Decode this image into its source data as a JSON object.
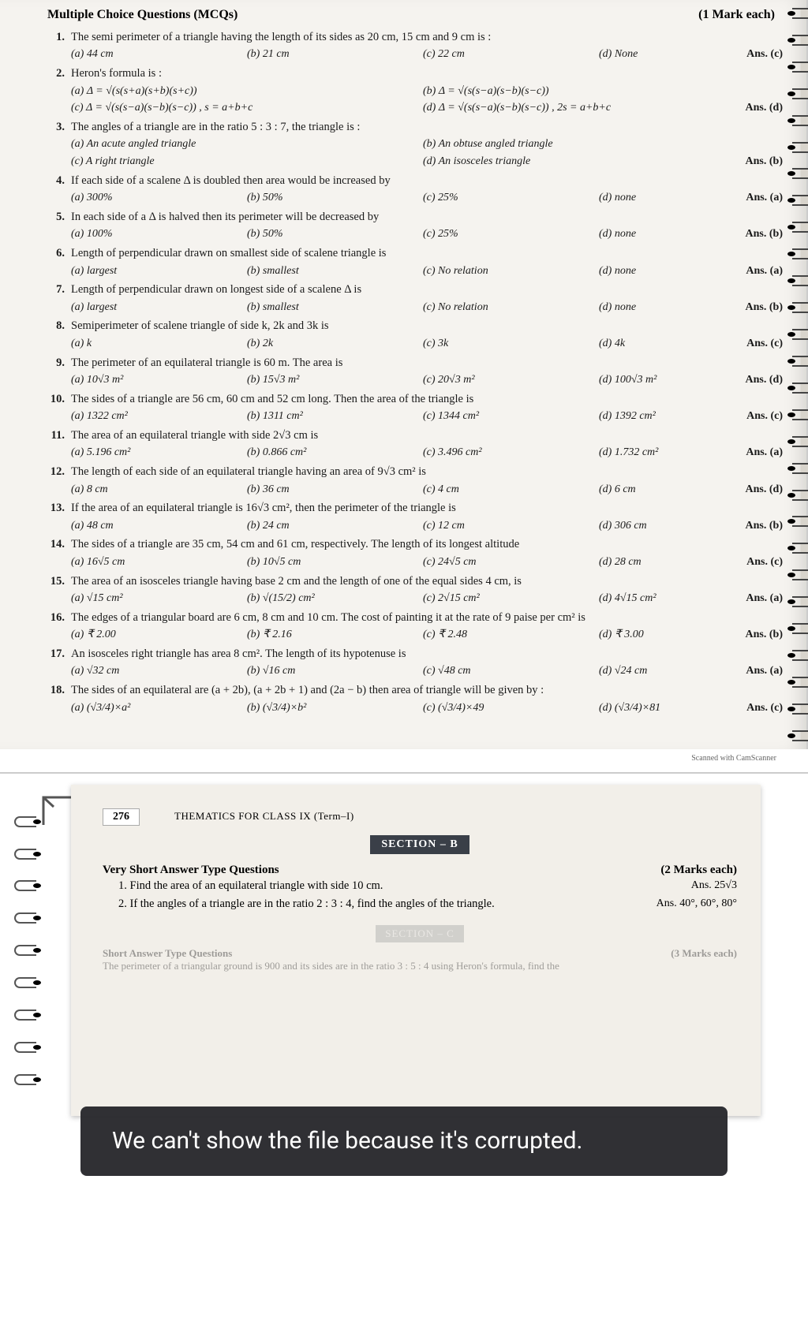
{
  "header": {
    "title": "Multiple Choice Questions (MCQs)",
    "marks": "(1 Mark each)"
  },
  "questions": [
    {
      "num": "1.",
      "text": "The semi perimeter of a triangle having the length of its sides as 20 cm, 15 cm and 9 cm is :",
      "opts": [
        "(a)  44 cm",
        "(b)  21 cm",
        "(c)  22 cm",
        "(d)  None"
      ],
      "ans": "Ans. (c)"
    },
    {
      "num": "2.",
      "text": "Heron's formula is :",
      "opts": [
        "(a)  Δ = √(s(s+a)(s+b)(s+c))",
        "(b)  Δ = √(s(s−a)(s−b)(s−c))",
        "(c)  Δ = √(s(s−a)(s−b)(s−c)) , s = a+b+c",
        "(d)  Δ = √(s(s−a)(s−b)(s−c)) , 2s = a+b+c"
      ],
      "two_row": true,
      "ans": "Ans. (d)"
    },
    {
      "num": "3.",
      "text": "The angles of a triangle are in the ratio 5 : 3 : 7, the triangle is :",
      "opts": [
        "(a) An acute angled triangle",
        "(b)  An obtuse angled triangle",
        "(c) A right triangle",
        "(d)  An isosceles triangle"
      ],
      "two_col": true,
      "ans": "Ans. (b)"
    },
    {
      "num": "4.",
      "text": "If each side of a scalene Δ is doubled then area would be increased by",
      "opts": [
        "(a) 300%",
        "(b)  50%",
        "(c)  25%",
        "(d)  none"
      ],
      "ans": "Ans. (a)"
    },
    {
      "num": "5.",
      "text": "In each side of a Δ is halved then its perimeter will be decreased by",
      "opts": [
        "(a) 100%",
        "(b)  50%",
        "(c)  25%",
        "(d)  none"
      ],
      "ans": "Ans. (b)"
    },
    {
      "num": "6.",
      "text": "Length of perpendicular drawn on smallest side of scalene triangle is",
      "opts": [
        "(a) largest",
        "(b)  smallest",
        "(c)  No relation",
        "(d)  none"
      ],
      "ans": "Ans. (a)"
    },
    {
      "num": "7.",
      "text": "Length of perpendicular drawn on longest side of a scalene Δ is",
      "opts": [
        "(a) largest",
        "(b)  smallest",
        "(c)  No relation",
        "(d)  none"
      ],
      "ans": "Ans. (b)"
    },
    {
      "num": "8.",
      "text": "Semiperimeter of scalene triangle of side k, 2k and 3k is",
      "opts": [
        "(a) k",
        "(b)  2k",
        "(c)  3k",
        "(d)  4k"
      ],
      "ans": "Ans. (c)"
    },
    {
      "num": "9.",
      "text": "The perimeter of an equilateral triangle is 60 m. The area is",
      "opts": [
        "(a) 10√3 m²",
        "(b)  15√3 m²",
        "(c)  20√3 m²",
        "(d)  100√3 m²"
      ],
      "ans": "Ans. (d)"
    },
    {
      "num": "10.",
      "text": "The sides of a triangle are 56 cm, 60 cm and 52 cm long. Then the area of the triangle is",
      "opts": [
        "(a) 1322 cm²",
        "(b)  1311 cm²",
        "(c)  1344 cm²",
        "(d)  1392 cm²"
      ],
      "ans": "Ans. (c)"
    },
    {
      "num": "11.",
      "text": "The area of an equilateral triangle with side 2√3 cm is",
      "opts": [
        "(a) 5.196 cm²",
        "(b)  0.866 cm²",
        "(c)  3.496 cm²",
        "(d)  1.732 cm²"
      ],
      "ans": "Ans. (a)"
    },
    {
      "num": "12.",
      "text": "The length of each side of an equilateral triangle having an area of 9√3 cm² is",
      "opts": [
        "(a) 8 cm",
        "(b)  36 cm",
        "(c)  4 cm",
        "(d)  6 cm"
      ],
      "ans": "Ans. (d)"
    },
    {
      "num": "13.",
      "text": "If the area of an equilateral triangle is 16√3 cm², then the perimeter of the triangle is",
      "opts": [
        "(a) 48 cm",
        "(b)  24 cm",
        "(c)  12 cm",
        "(d)  306 cm"
      ],
      "ans": "Ans. (b)"
    },
    {
      "num": "14.",
      "text": "The sides of a triangle are 35 cm, 54 cm and 61 cm, respectively. The length of its longest altitude",
      "opts": [
        "(a) 16√5 cm",
        "(b)  10√5 cm",
        "(c)  24√5 cm",
        "(d)  28 cm"
      ],
      "ans": "Ans. (c)"
    },
    {
      "num": "15.",
      "text": "The area of an isosceles triangle having base 2 cm and the length of one of the equal sides 4 cm, is",
      "opts": [
        "(a) √15 cm²",
        "(b)  √(15/2) cm²",
        "(c)  2√15 cm²",
        "(d)  4√15 cm²"
      ],
      "ans": "Ans. (a)"
    },
    {
      "num": "16.",
      "text": "The edges of a triangular board are 6 cm, 8 cm and 10 cm. The cost of painting it at the rate of 9 paise per cm² is",
      "opts": [
        "(a) ₹ 2.00",
        "(b)  ₹ 2.16",
        "(c)  ₹ 2.48",
        "(d)  ₹ 3.00"
      ],
      "ans": "Ans. (b)"
    },
    {
      "num": "17.",
      "text": "An isosceles right triangle has area 8 cm². The length of its hypotenuse is",
      "opts": [
        "(a) √32 cm",
        "(b)  √16 cm",
        "(c)  √48 cm",
        "(d)  √24 cm"
      ],
      "ans": "Ans. (a)"
    },
    {
      "num": "18.",
      "text": "The sides of an equilateral are (a + 2b), (a + 2b + 1) and (2a − b) then area of triangle will be given by :",
      "opts": [
        "(a) (√3/4)×a²",
        "(b)  (√3/4)×b²",
        "(c)  (√3/4)×49",
        "(d)  (√3/4)×81"
      ],
      "ans": "Ans. (c)"
    }
  ],
  "watermark": "Scanned with CamScanner",
  "page2": {
    "pgnum": "276",
    "book_title": "THEMATICS FOR CLASS IX (Term–I)",
    "section_badge": "SECTION – B",
    "vsa_title": "Very Short Answer Type Questions",
    "vsa_marks": "(2 Marks each)",
    "q1_num": "1.",
    "q1": "Find the area of an equilateral triangle with side 10 cm.",
    "q1_ans": "Ans. 25√3",
    "q2_num": "2.",
    "q2": "If the angles of a triangle are in the ratio 2 : 3 : 4, find the angles of the triangle.",
    "q2_ans": "Ans. 40°, 60°, 80°",
    "section_c_badge": "SECTION – C",
    "faded_marks": "(3 Marks each)",
    "faded_line": "The perimeter of a triangular ground is 900 and its sides are in the ratio 3 : 5 : 4 using Heron's formula, find the"
  },
  "toast": "We can't show the file because it's corrupted."
}
